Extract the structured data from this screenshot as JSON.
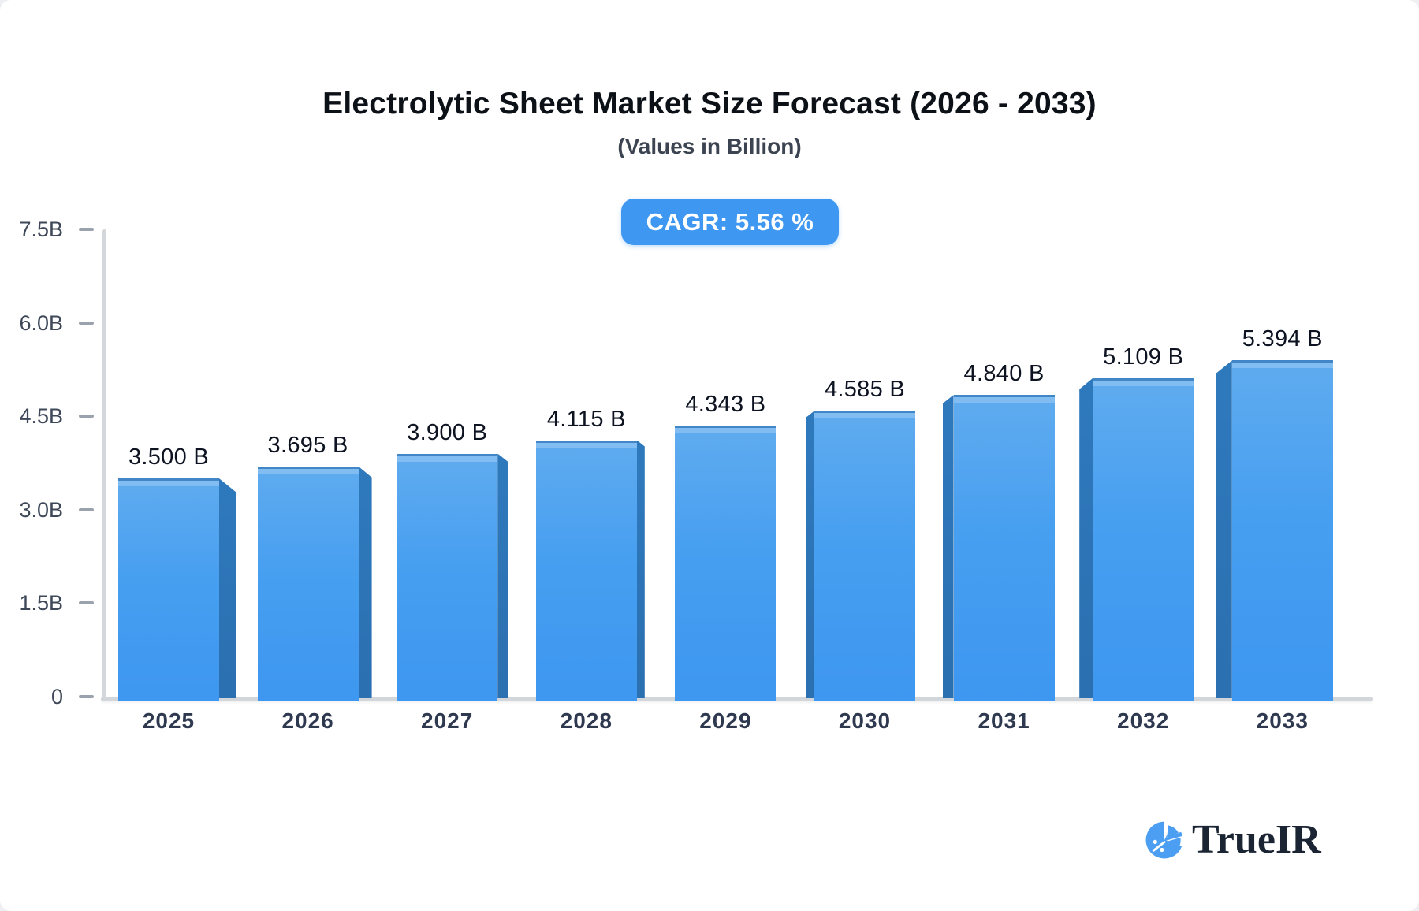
{
  "header": {
    "title": "Electrolytic Sheet Market Size Forecast (2026 - 2033)",
    "subtitle": "(Values in Billion)",
    "cagr_badge": "CAGR: 5.56 %"
  },
  "chart_data": {
    "type": "bar",
    "title": "Electrolytic Sheet Market Size Forecast (2026 - 2033)",
    "subtitle": "(Values in Billion)",
    "cagr": "5.56 %",
    "categories": [
      "2025",
      "2026",
      "2027",
      "2028",
      "2029",
      "2030",
      "2031",
      "2032",
      "2033"
    ],
    "values": [
      3.5,
      3.695,
      3.9,
      4.115,
      4.343,
      4.585,
      4.84,
      5.109,
      5.394
    ],
    "bar_labels": [
      "3.500 B",
      "3.695 B",
      "3.900 B",
      "4.115 B",
      "4.343 B",
      "4.585 B",
      "4.840 B",
      "5.109 B",
      "5.394 B"
    ],
    "xlabel": "",
    "ylabel": "",
    "ylim": [
      0,
      7.5
    ],
    "yticks": [
      {
        "label": "7.5B",
        "value": 7.5
      },
      {
        "label": "6.0B",
        "value": 6.0
      },
      {
        "label": "4.5B",
        "value": 4.5
      },
      {
        "label": "3.0B",
        "value": 3.0
      },
      {
        "label": "1.5B",
        "value": 1.5
      },
      {
        "label": "0",
        "value": 0
      }
    ],
    "grid": false,
    "legend": false
  },
  "colors": {
    "accent": "#3E97F0",
    "bar_front_top": "#5FABEF",
    "bar_front_bottom": "#3E97F0",
    "bar_side": "#2E79BD",
    "axis_line": "#d2d5d9",
    "tick_dash": "#9aa2ad",
    "badge_bg": "#3E97F0",
    "logo_blue": "#4B9EF1"
  },
  "footer": {
    "logo_text": "TrueIR"
  }
}
